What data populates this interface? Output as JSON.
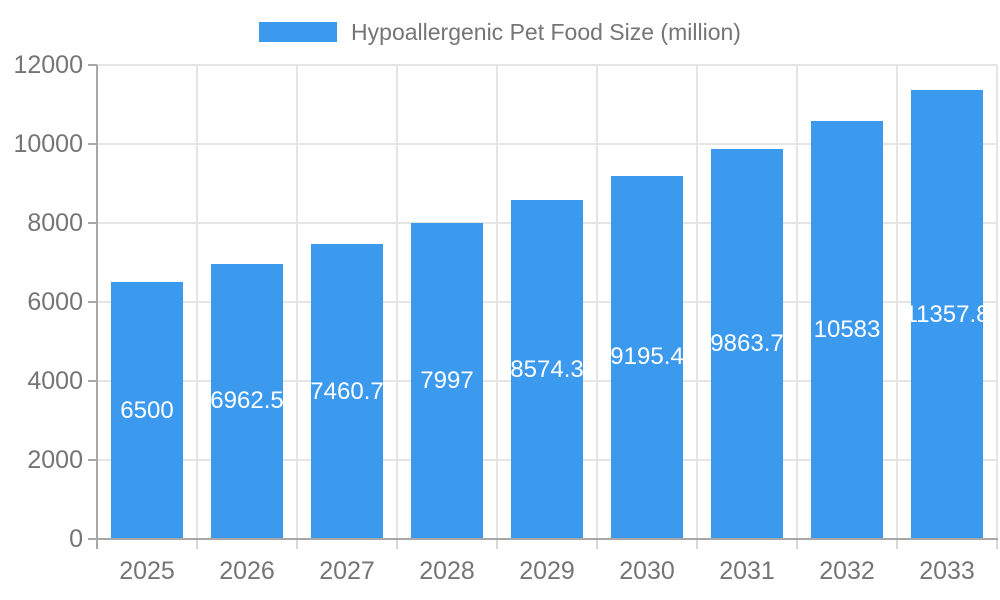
{
  "chart_data": {
    "type": "bar",
    "series_label": "Hypoallergenic Pet Food Size (million)",
    "categories": [
      "2025",
      "2026",
      "2027",
      "2028",
      "2029",
      "2030",
      "2031",
      "2032",
      "2033"
    ],
    "values": [
      6500,
      6962.5,
      7460.7,
      7997,
      8574.3,
      9195.4,
      9863.7,
      10583,
      11357.8
    ],
    "value_labels": [
      "6500",
      "6962.5",
      "7460.7",
      "7997",
      "8574.3",
      "9195.4",
      "9863.7",
      "10583",
      "11357.8"
    ],
    "yticks": [
      "0",
      "2000",
      "4000",
      "6000",
      "8000",
      "10000",
      "12000"
    ],
    "ylim": [
      0,
      12000
    ],
    "ytick_step": 2000,
    "grid": true,
    "legend_position": "top",
    "value_label_position": "inside-center"
  },
  "colors": {
    "bar": "#3b99ee",
    "value_label_text": "#ffffff",
    "tick_text": "#757575",
    "legend_text": "#757575",
    "gridline": "#e5e5e5",
    "x_tick_mark": "#d8d8d8",
    "axis": "#a8a8a8",
    "background": "#ffffff"
  }
}
